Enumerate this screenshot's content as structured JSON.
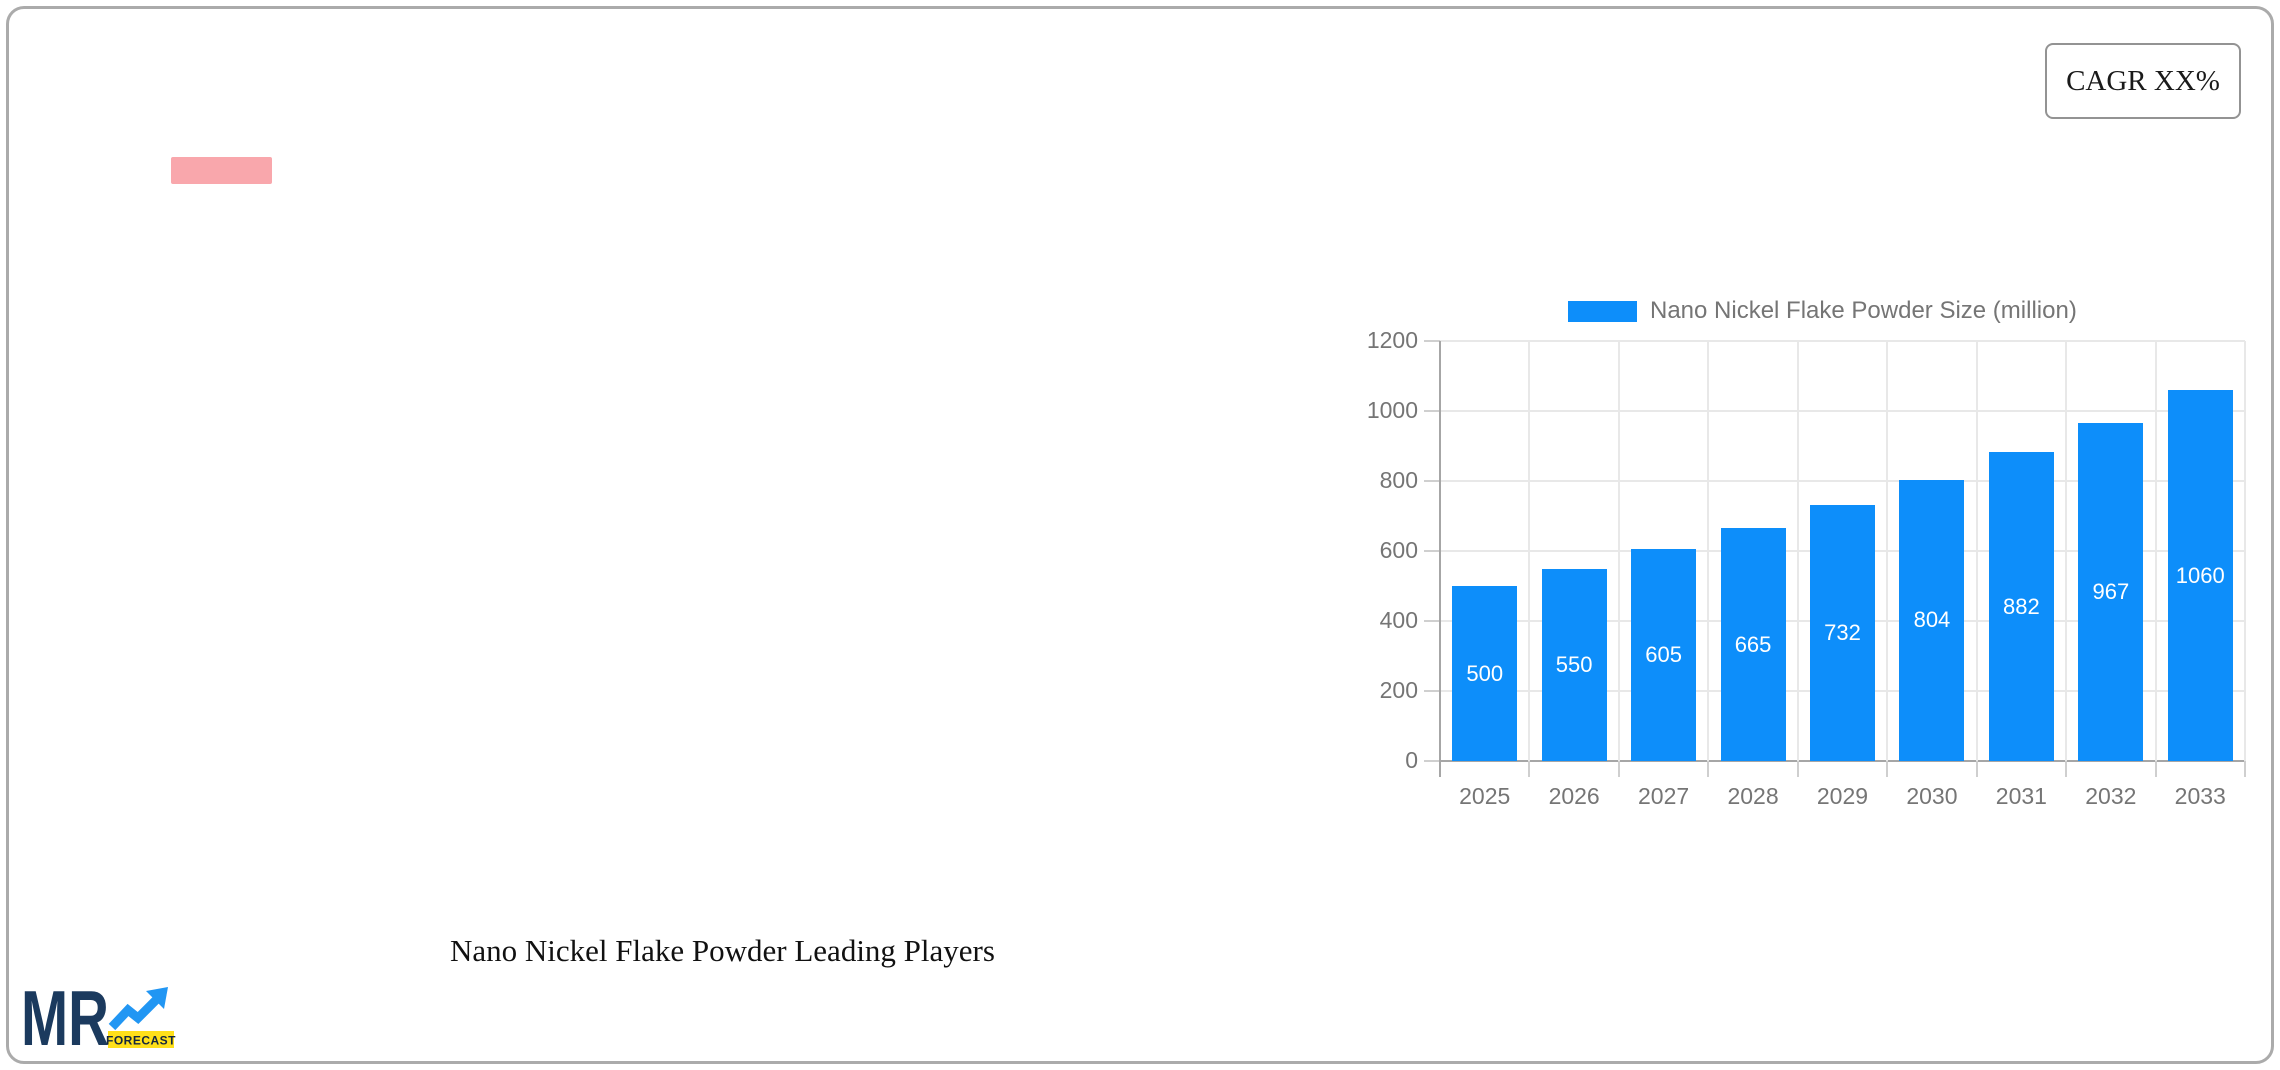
{
  "canvas": {
    "border_color": "#ABABAB"
  },
  "cagr_box": {
    "label": "CAGR XX%"
  },
  "highlight_bar": {
    "color": "#F9A7AC"
  },
  "chart_data": {
    "type": "bar",
    "categories": [
      "2025",
      "2026",
      "2027",
      "2028",
      "2029",
      "2030",
      "2031",
      "2032",
      "2033"
    ],
    "series": [
      {
        "name": "Nano Nickel Flake Powder Size (million)",
        "values": [
          500,
          550,
          605,
          665,
          732,
          804,
          882,
          967,
          1060
        ]
      }
    ],
    "title": "",
    "xlabel": "",
    "ylabel": "",
    "ylim": [
      0,
      1200
    ],
    "yticks": [
      0,
      200,
      400,
      600,
      800,
      1000,
      1200
    ],
    "grid": true,
    "legend_position": "top",
    "bar_color": "#0D8EFA",
    "value_label_color": "#FFFFFF",
    "axis_text_color": "#757575",
    "axis_line_color": "#A6A6A6",
    "grid_color": "#E8E8E8",
    "tick_color": "#CFCFCF"
  },
  "footer": {
    "title": "Nano Nickel Flake Powder Leading Players"
  },
  "logo": {
    "mr": "MR",
    "forecast": "FORECAST",
    "mr_color": "#1B3A5E",
    "arrow_color": "#2196F3",
    "badge_bg": "#FFE01A",
    "badge_text_color": "#14273F"
  }
}
